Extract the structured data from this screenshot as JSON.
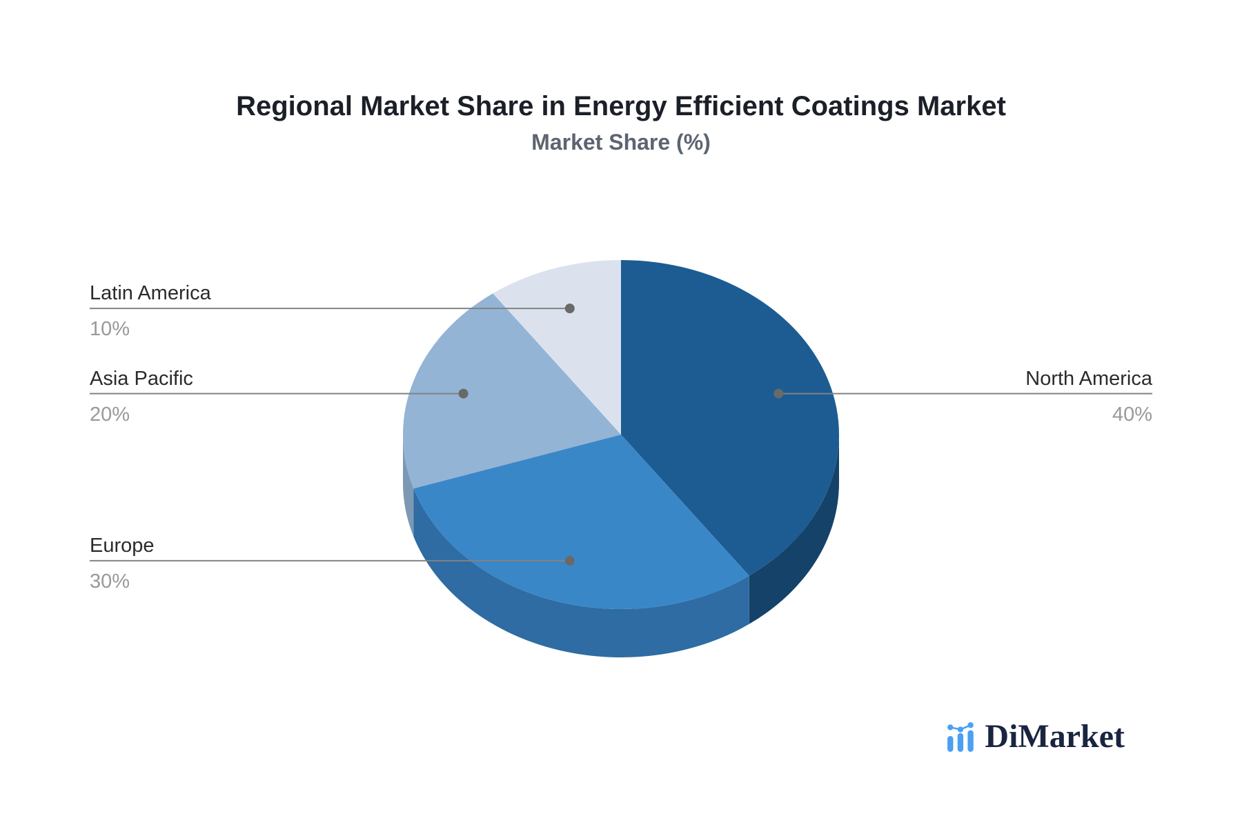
{
  "chart": {
    "title": "Regional Market Share in Energy Efficient Coatings Market",
    "subtitle": "Market Share (%)"
  },
  "chart_data": {
    "type": "pie",
    "title": "Regional Market Share in Energy Efficient Coatings Market",
    "subtitle": "Market Share (%)",
    "unit": "percent",
    "effect": "3d",
    "start_angle_deg": 0,
    "direction": "clockwise",
    "legend": "none",
    "slices": [
      {
        "label": "North America",
        "value": 40,
        "display": "40%",
        "color": "#1d5c92",
        "side_color": "#154269",
        "label_side": "right"
      },
      {
        "label": "Europe",
        "value": 30,
        "display": "30%",
        "color": "#3a87c8",
        "side_color": "#2e6ca3",
        "label_side": "left"
      },
      {
        "label": "Asia Pacific",
        "value": 20,
        "display": "20%",
        "color": "#93b4d5",
        "side_color": "#7c98b4",
        "label_side": "left"
      },
      {
        "label": "Latin America",
        "value": 10,
        "display": "10%",
        "color": "#dbe2ee",
        "side_color": "#bcc5d4",
        "label_side": "left"
      }
    ],
    "leader_line_color": "#828282",
    "leader_dot_color": "#696969",
    "label_color": "#2b2b2b",
    "value_color": "#97999c"
  },
  "branding": {
    "logo_text": "DiMarket",
    "logo_icon": "bar-line-chart-icon",
    "icon_color": "#4aa0f5",
    "text_color": "#192540"
  }
}
